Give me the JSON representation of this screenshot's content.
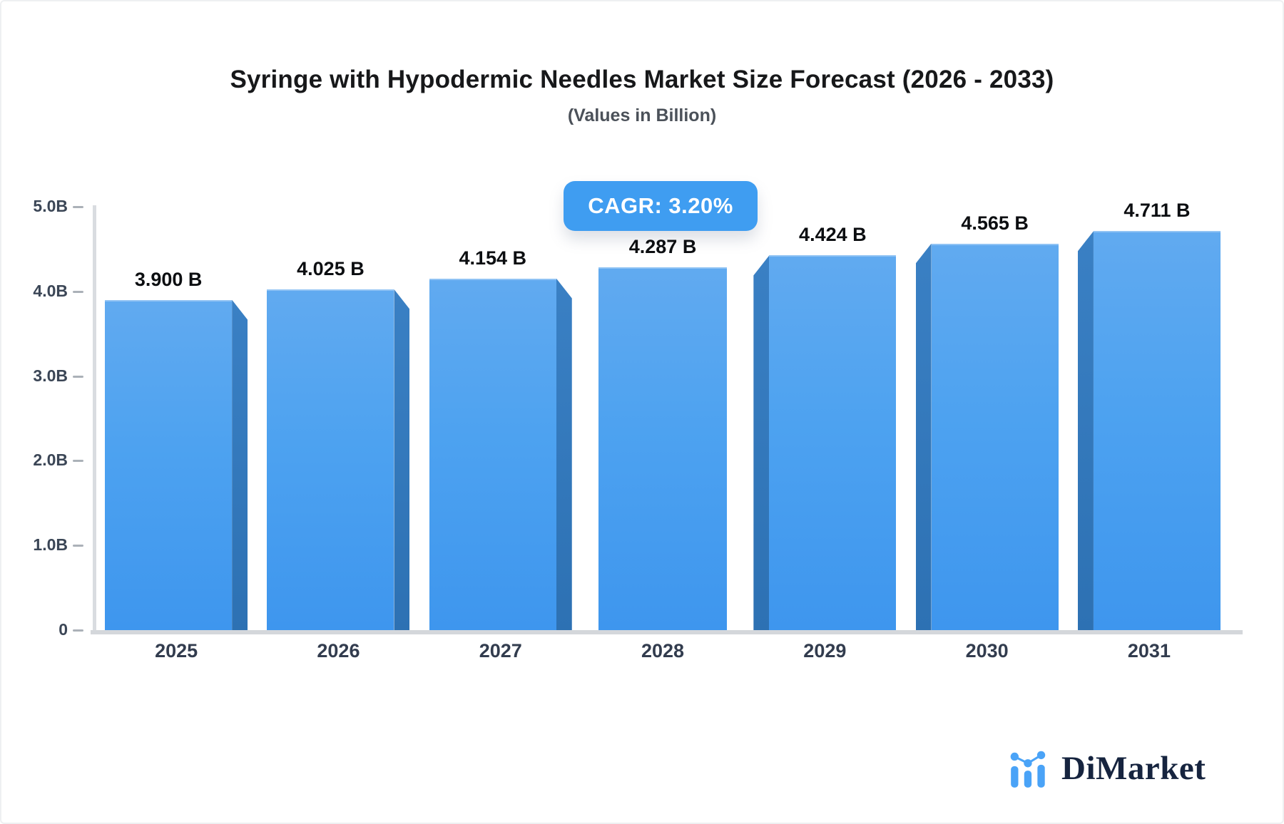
{
  "title": "Syringe with Hypodermic Needles Market Size Forecast (2026 - 2033)",
  "subtitle": "(Values in Billion)",
  "badge": {
    "label": "CAGR: 3.20%"
  },
  "logo": {
    "text": "DiMarket",
    "icon": "bar-line-chart-logo-icon"
  },
  "colors": {
    "accent": "#3f9df1",
    "bar_top": "#61aaf0",
    "bar_bottom": "#3e96ee",
    "bar_side": "#2e74b6",
    "axis": "#d6d9dd",
    "title_text": "#17181a",
    "subtitle_text": "#4b5159",
    "tick_text": "#3b4656",
    "logo_navy": "#16243f",
    "logo_blue": "#4aa3f7"
  },
  "chart_data": {
    "type": "bar",
    "title": "Syringe with Hypodermic Needles Market Size Forecast (2026 - 2033)",
    "subtitle": "(Values in Billion)",
    "categories": [
      "2025",
      "2026",
      "2027",
      "2028",
      "2029",
      "2030",
      "2031"
    ],
    "values": [
      3.9,
      4.025,
      4.154,
      4.287,
      4.424,
      4.565,
      4.711
    ],
    "value_labels": [
      "3.900 B",
      "4.025 B",
      "4.154 B",
      "4.287 B",
      "4.424 B",
      "4.565 B",
      "4.711 B"
    ],
    "annotation": "CAGR: 3.20%",
    "xlabel": "",
    "ylabel": "",
    "ylim": [
      0,
      5
    ],
    "yticks": [
      "5.0B",
      "4.0B",
      "3.0B",
      "2.0B",
      "1.0B",
      "0"
    ],
    "grid": false,
    "legend": false,
    "bar_style": "3d-bevel"
  }
}
